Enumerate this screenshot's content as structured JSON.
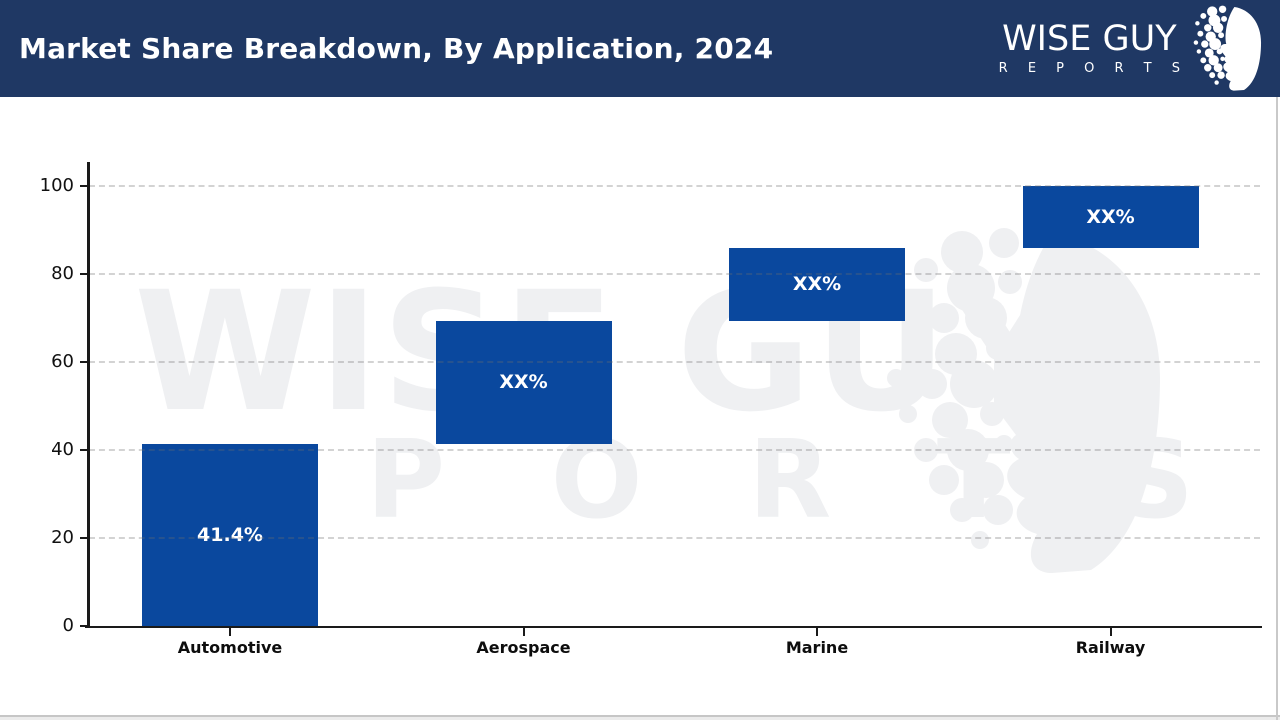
{
  "header": {
    "title": "Market Share Breakdown, By Application, 2024",
    "logo": {
      "line1": "WISE GUY",
      "line2": "R E P O R T S"
    }
  },
  "watermark": {
    "line1": "WISE GUY",
    "line2": "P O R T S"
  },
  "colors": {
    "header_bg": "#1f3864",
    "bar": "#0a489e",
    "grid": "rgba(110,110,110,0.30)",
    "axis": "#1a1a1a",
    "bar_label": "#ffffff",
    "watermark": "#eff0f2"
  },
  "chart_data": {
    "type": "bar",
    "subtype": "waterfall",
    "title": "Market Share Breakdown, By Application, 2024",
    "categories": [
      "Automotive",
      "Aerospace",
      "Marine",
      "Railway"
    ],
    "segments": [
      {
        "category": "Automotive",
        "start": 0,
        "end": 41.4,
        "label": "41.4%"
      },
      {
        "category": "Aerospace",
        "start": 41.4,
        "end": 69.4,
        "label": "XX%"
      },
      {
        "category": "Marine",
        "start": 69.4,
        "end": 85.9,
        "label": "XX%"
      },
      {
        "category": "Railway",
        "start": 85.9,
        "end": 100,
        "label": "XX%"
      }
    ],
    "yticks": [
      0,
      20,
      40,
      60,
      80,
      100
    ],
    "ylim": [
      0,
      105
    ],
    "xlabel": "",
    "ylabel": "",
    "grid": "dashed-horizontal",
    "legend": "none"
  }
}
